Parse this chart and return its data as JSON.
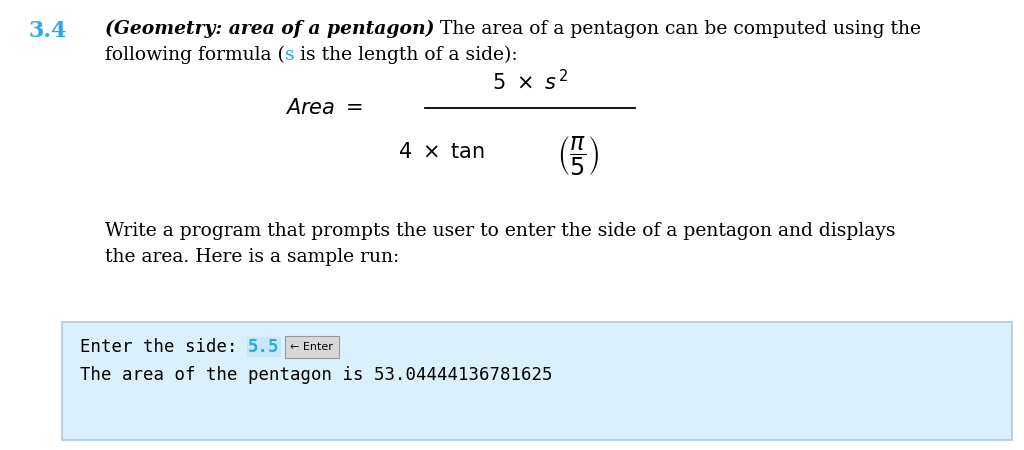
{
  "bg_color": "#ffffff",
  "number_text": "3.4",
  "number_color": "#29ABE2",
  "terminal_bg": "#DAF0FA",
  "terminal_border": "#B0C8D8",
  "title_line1_italic": "(Geometry: area of a pentagon)",
  "title_line1_rest": " The area of a pentagon can be computed using the",
  "title_line2_pre": "following formula (",
  "title_line2_s": "s",
  "title_line2_post": " is the length of a side):",
  "body_line1": "Write a program that prompts the user to enter the side of a pentagon and displays",
  "body_line2": "the area. Here is a sample run:",
  "term_line1_pre": "Enter the side: ",
  "term_line1_val": "5.5",
  "term_line1_btn": "← Enter",
  "term_line2": "The area of the pentagon is 53.04444136781625",
  "fontsize_main": 13.5,
  "fontsize_number": 16,
  "fontsize_mono": 12.5,
  "fontsize_formula": 15
}
